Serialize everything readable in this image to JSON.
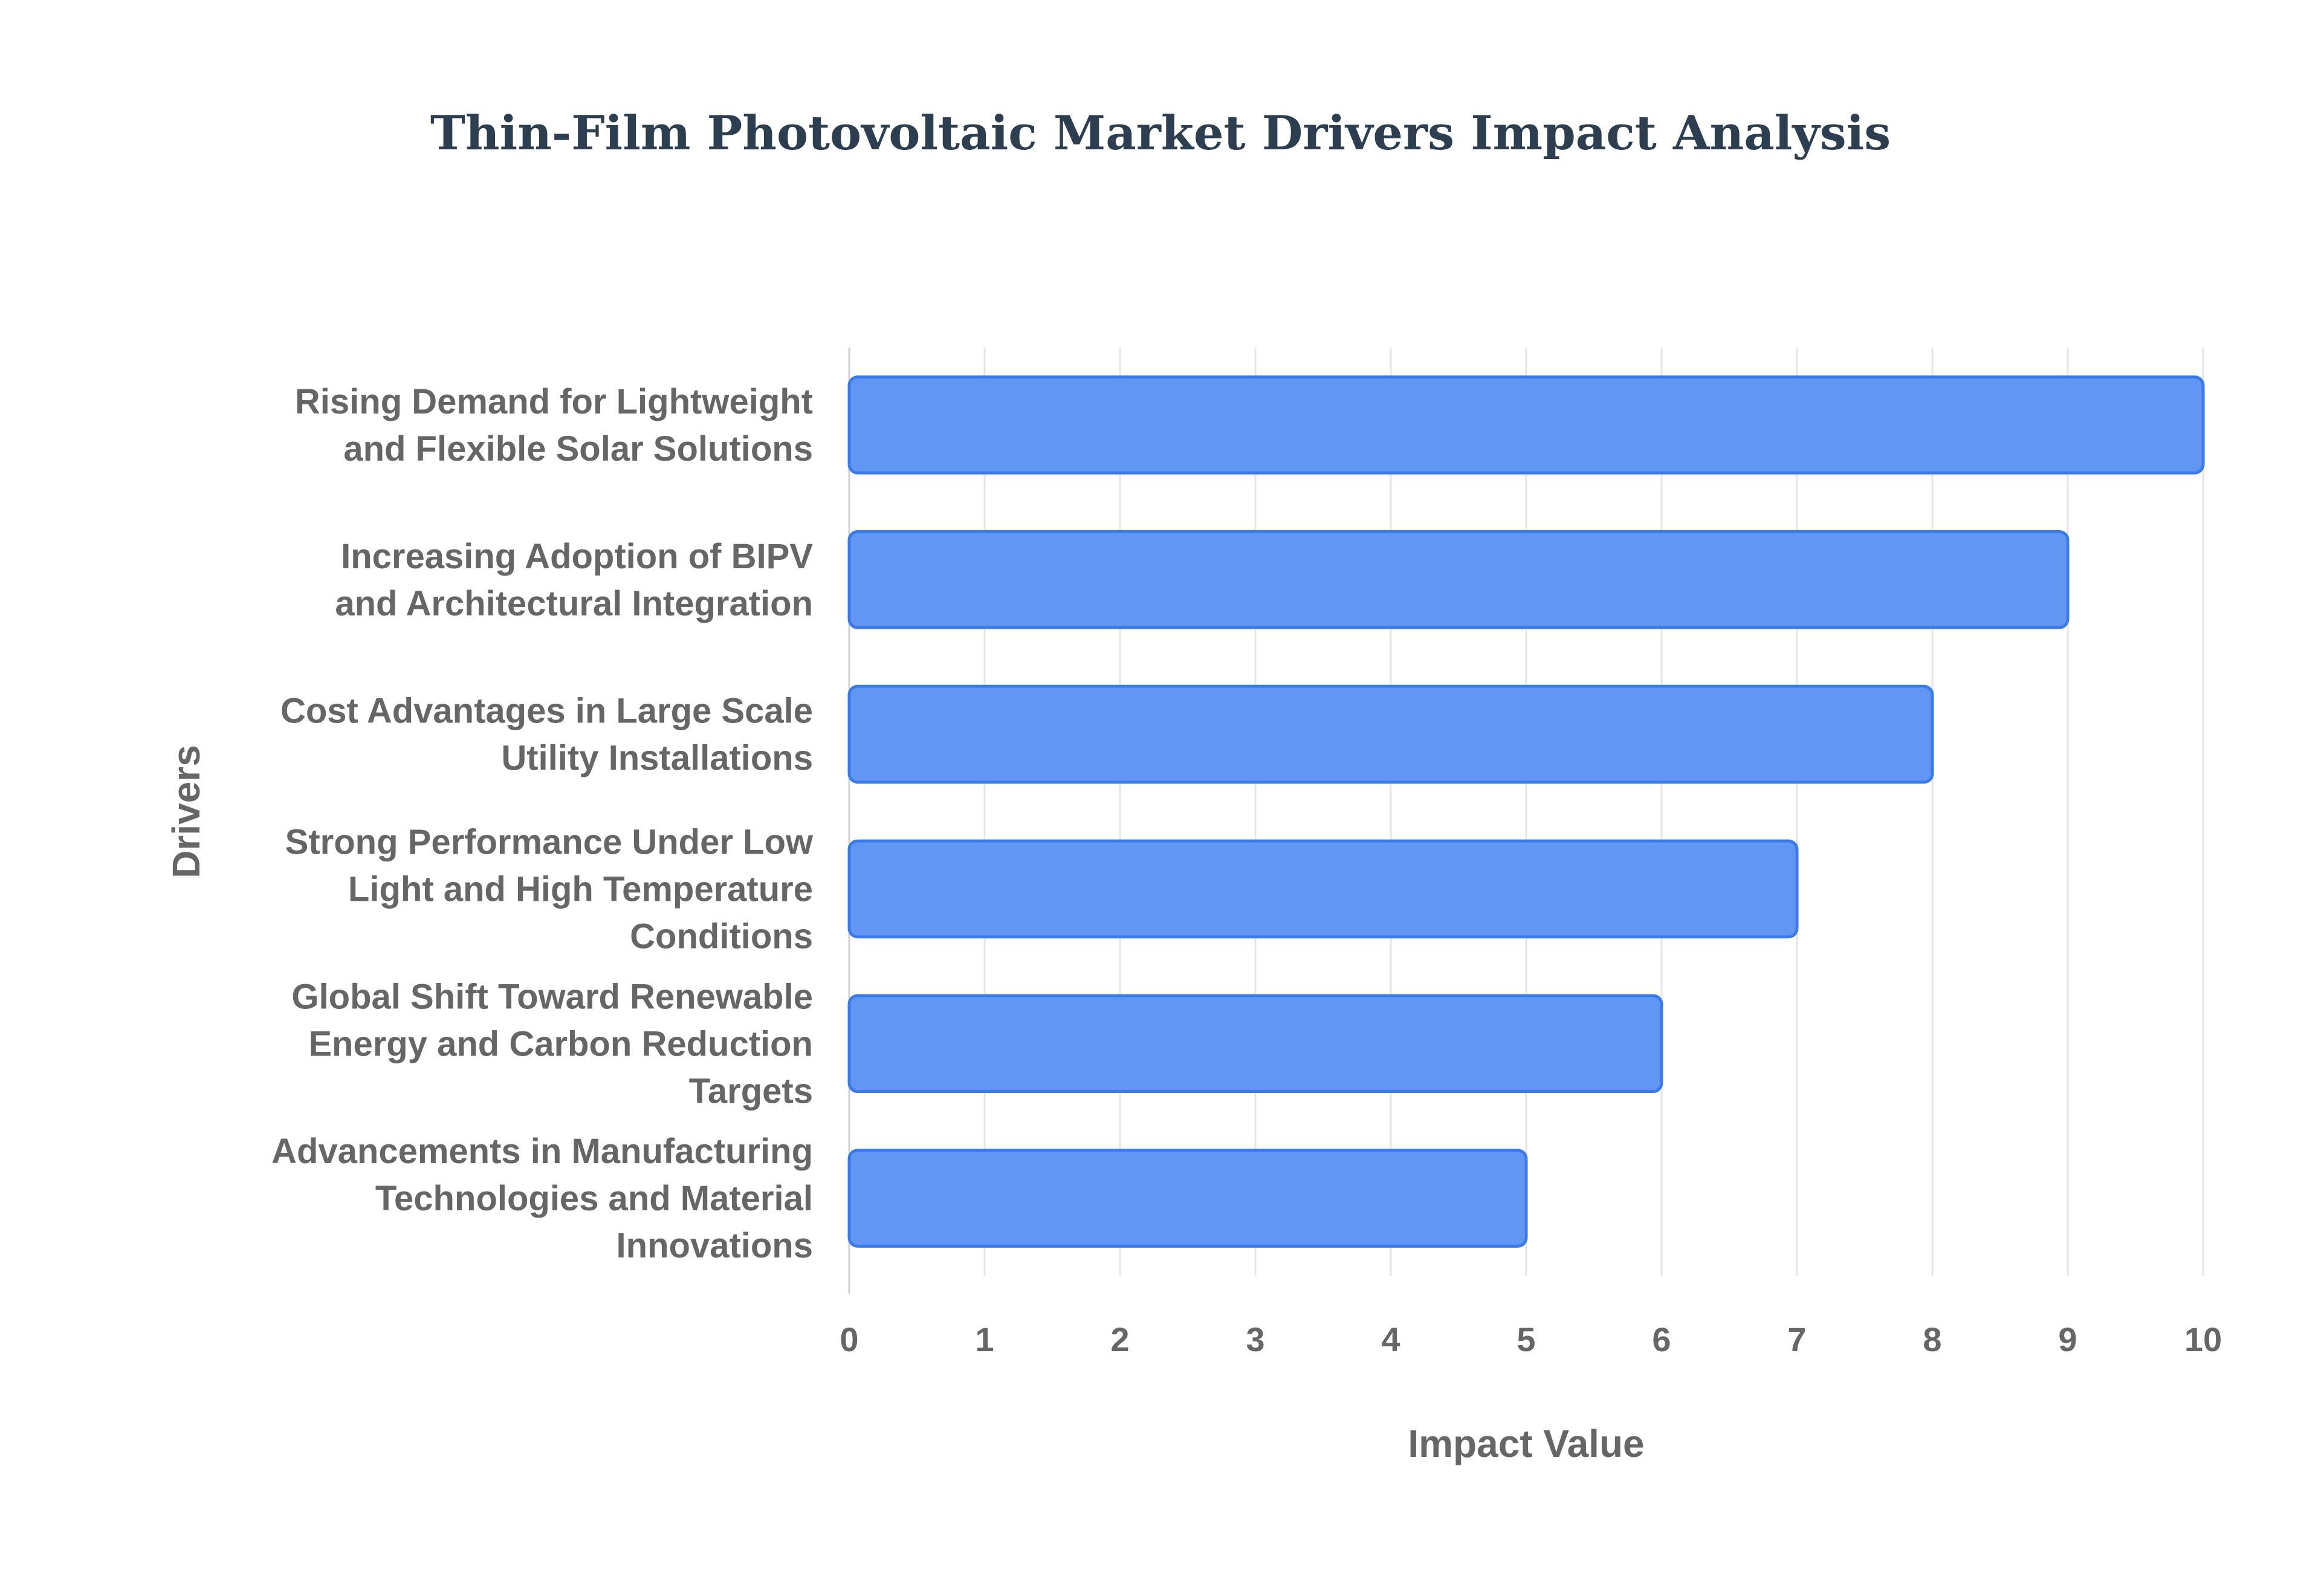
{
  "chart_data": {
    "type": "bar",
    "orientation": "horizontal",
    "title": "Thin-Film Photovoltaic Market Drivers Impact Analysis",
    "xlabel": "Impact Value",
    "ylabel": "Drivers",
    "xlim": [
      0,
      10
    ],
    "xticks": [
      "0",
      "1",
      "2",
      "3",
      "4",
      "5",
      "6",
      "7",
      "8",
      "9",
      "10"
    ],
    "grid": true,
    "legend": "none",
    "bar_color": "#6196f5",
    "bar_border_color": "#3a7be8",
    "categories": [
      [
        "Rising Demand for Lightweight",
        "and Flexible Solar Solutions"
      ],
      [
        "Increasing Adoption of BIPV",
        "and Architectural Integration"
      ],
      [
        "Cost Advantages in Large Scale",
        "Utility Installations"
      ],
      [
        "Strong Performance Under Low",
        "Light and High Temperature",
        "Conditions"
      ],
      [
        "Global Shift Toward Renewable",
        "Energy and Carbon Reduction",
        "Targets"
      ],
      [
        "Advancements in Manufacturing",
        "Technologies and Material",
        "Innovations"
      ]
    ],
    "values": [
      10,
      9,
      8,
      7,
      6,
      5
    ]
  }
}
